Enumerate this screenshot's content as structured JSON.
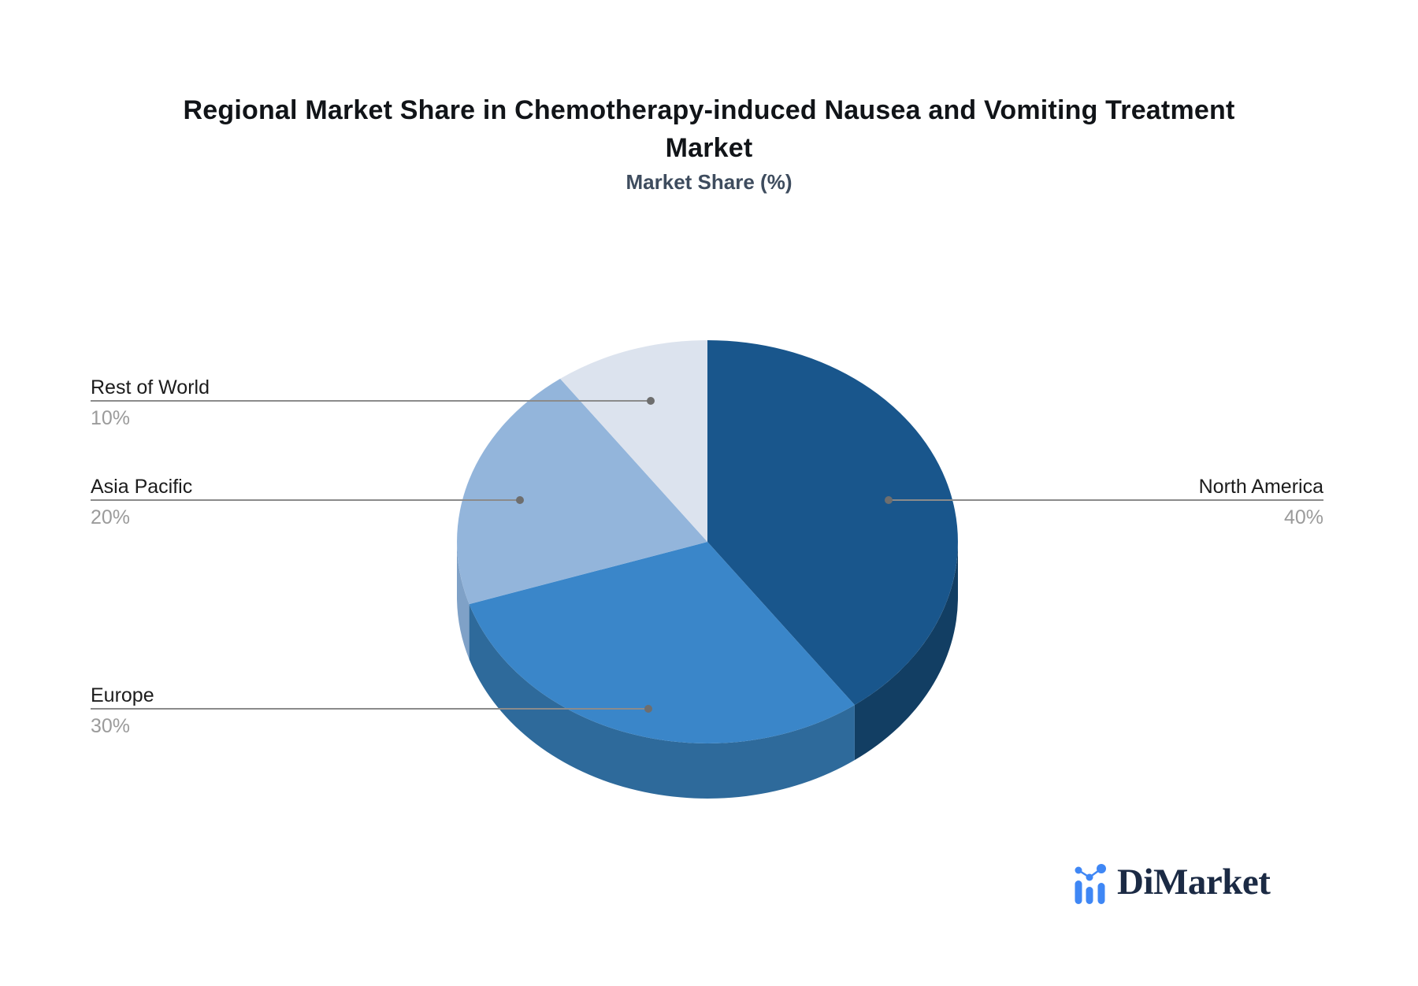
{
  "header": {
    "title": "Regional Market Share in Chemotherapy-induced Nausea and Vomiting Treatment Market",
    "subtitle": "Market Share (%)"
  },
  "chart_data": {
    "type": "pie",
    "style": "3d-depth",
    "title": "Regional Market Share in Chemotherapy-induced Nausea and Vomiting Treatment Market",
    "subtitle": "Market Share (%)",
    "unit": "%",
    "start_angle": "12-o-clock",
    "direction": "clockwise",
    "labels": [
      "North America",
      "Europe",
      "Asia Pacific",
      "Rest of World"
    ],
    "values": [
      40,
      30,
      20,
      10
    ],
    "value_labels": [
      "40%",
      "30%",
      "20%",
      "10%"
    ],
    "slice_colors": [
      "#19568C",
      "#3A86C9",
      "#93B5DB",
      "#DCE3EE"
    ],
    "side_colors": [
      "#123E63",
      "#2E6A9B",
      "#7FA1C7",
      "#C5CEDD"
    ],
    "leader_line_color": "#8B8B8B",
    "leader_dot_color": "#6E6E6E",
    "label_color": "#1C1C1C",
    "percent_color": "#9B9B9B",
    "legend": "none"
  },
  "callouts": {
    "rest_of_world": {
      "label": "Rest of World",
      "value": "10%"
    },
    "asia_pacific": {
      "label": "Asia Pacific",
      "value": "20%"
    },
    "europe": {
      "label": "Europe",
      "value": "30%"
    },
    "north_america": {
      "label": "North America",
      "value": "40%"
    }
  },
  "logo": {
    "text": "DiMarket",
    "icon_color": "#3F87F5",
    "text_color": "#1B2A44"
  }
}
